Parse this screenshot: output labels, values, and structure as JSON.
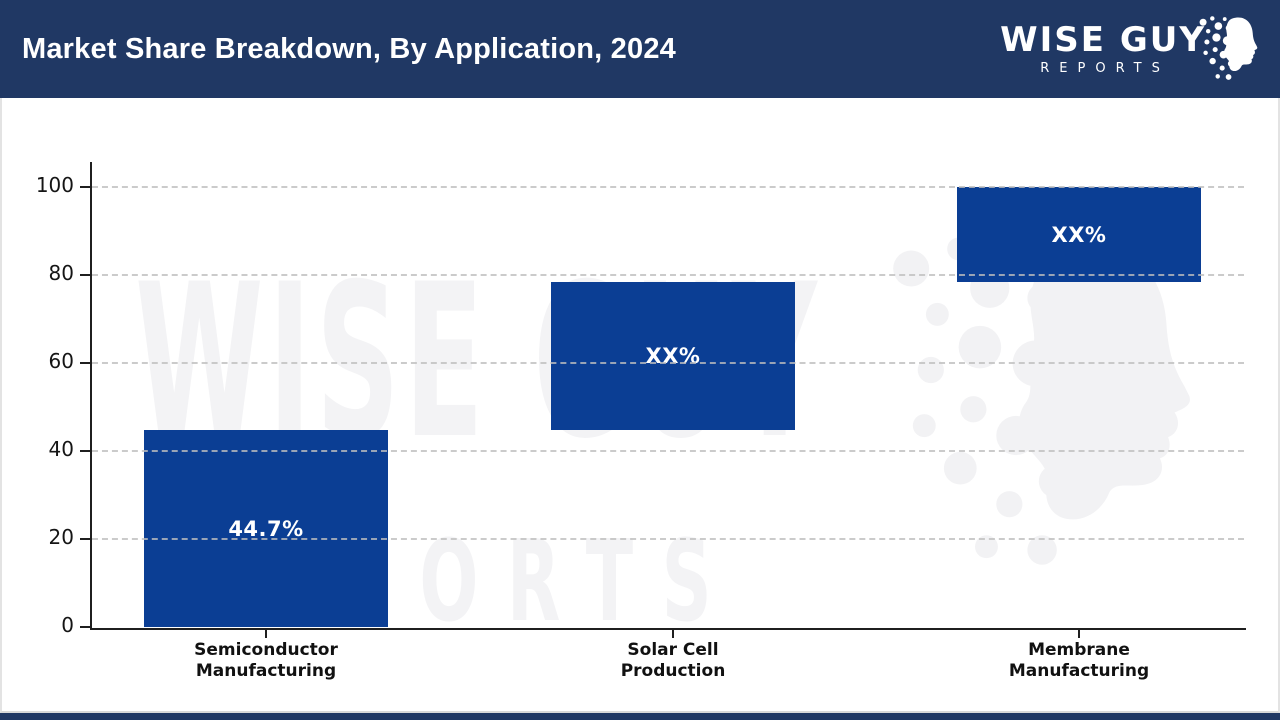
{
  "header": {
    "title": "Market Share Breakdown, By Application, 2024",
    "logo": {
      "name": "WISE GUY",
      "sub": "REPORTS"
    }
  },
  "watermark": {
    "big": "WISE GUY",
    "sub": "REPORTS"
  },
  "footer": {},
  "chart_data": {
    "type": "bar",
    "subtype": "waterfall",
    "title": "Market Share Breakdown, By Application, 2024",
    "categories": [
      "Semiconductor\nManufacturing",
      "Solar Cell\nProduction",
      "Membrane\nManufacturing"
    ],
    "values": [
      44.7,
      33.6,
      21.7
    ],
    "segments": [
      {
        "from": 0,
        "to": 44.7,
        "label": "44.7%"
      },
      {
        "from": 44.7,
        "to": 78.3,
        "label": "XX%"
      },
      {
        "from": 78.3,
        "to": 100,
        "label": "XX%"
      }
    ],
    "xlabel": "",
    "ylabel": "",
    "ylim": [
      0,
      100
    ],
    "yticks": [
      0,
      20,
      40,
      60,
      80,
      100
    ],
    "grid": "horizontal-dashed",
    "legend": null,
    "bar_color": "#0b3e94",
    "bar_label_color": "#ffffff",
    "header_color": "#203864",
    "watermark_color": "#f3f3f5"
  }
}
